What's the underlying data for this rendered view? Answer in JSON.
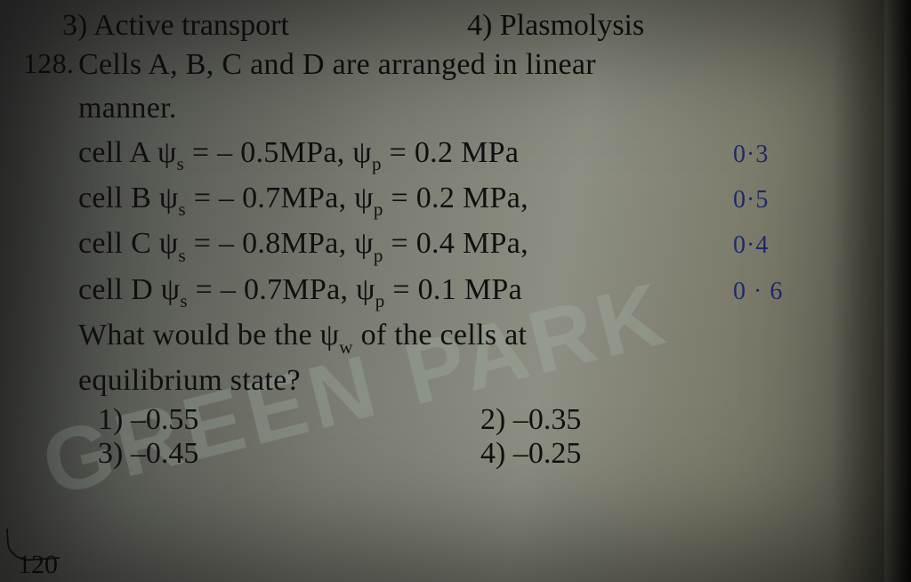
{
  "top_options": {
    "opt3": "3) Active transport",
    "opt4": "4) Plasmolysis"
  },
  "question": {
    "number": "128.",
    "stem_line1": "Cells A, B, C and D are arranged in linear",
    "stem_line2": "manner.",
    "cells": [
      {
        "text": "cell A ψ",
        "sub1": "s",
        "text2": " = – 0.5MPa, ψ",
        "sub2": "p",
        "text3": " = 0.2 MPa",
        "hand": "0·3"
      },
      {
        "text": "cell B ψ",
        "sub1": "s",
        "text2": " = – 0.7MPa, ψ",
        "sub2": "p",
        "text3": " = 0.2 MPa,",
        "hand": "0·5"
      },
      {
        "text": "cell C ψ",
        "sub1": "s",
        "text2": " = – 0.8MPa, ψ",
        "sub2": "p",
        "text3": " = 0.4 MPa,",
        "hand": "0·4"
      },
      {
        "text": "cell D ψ",
        "sub1": "s",
        "text2": " = – 0.7MPa, ψ",
        "sub2": "p",
        "text3": " = 0.1 MPa",
        "hand": "0 · 6"
      }
    ],
    "ask_part1": "What would be the ψ",
    "ask_sub": "w",
    "ask_part2": " of the cells at",
    "ask_line2": "equilibrium state?",
    "options": {
      "o1": "1) –0.55",
      "o2": "2) –0.35",
      "o3": "3) –0.45",
      "o4": "4) –0.25"
    }
  },
  "partial": "120",
  "watermark": "GREEN PARK",
  "colors": {
    "text": "#101010",
    "handwriting": "#1f2a6b",
    "watermark": "rgba(170,185,175,0.28)"
  },
  "fontsizes": {
    "body": 34,
    "sub": 21,
    "hand": 28,
    "watermark": 100
  }
}
